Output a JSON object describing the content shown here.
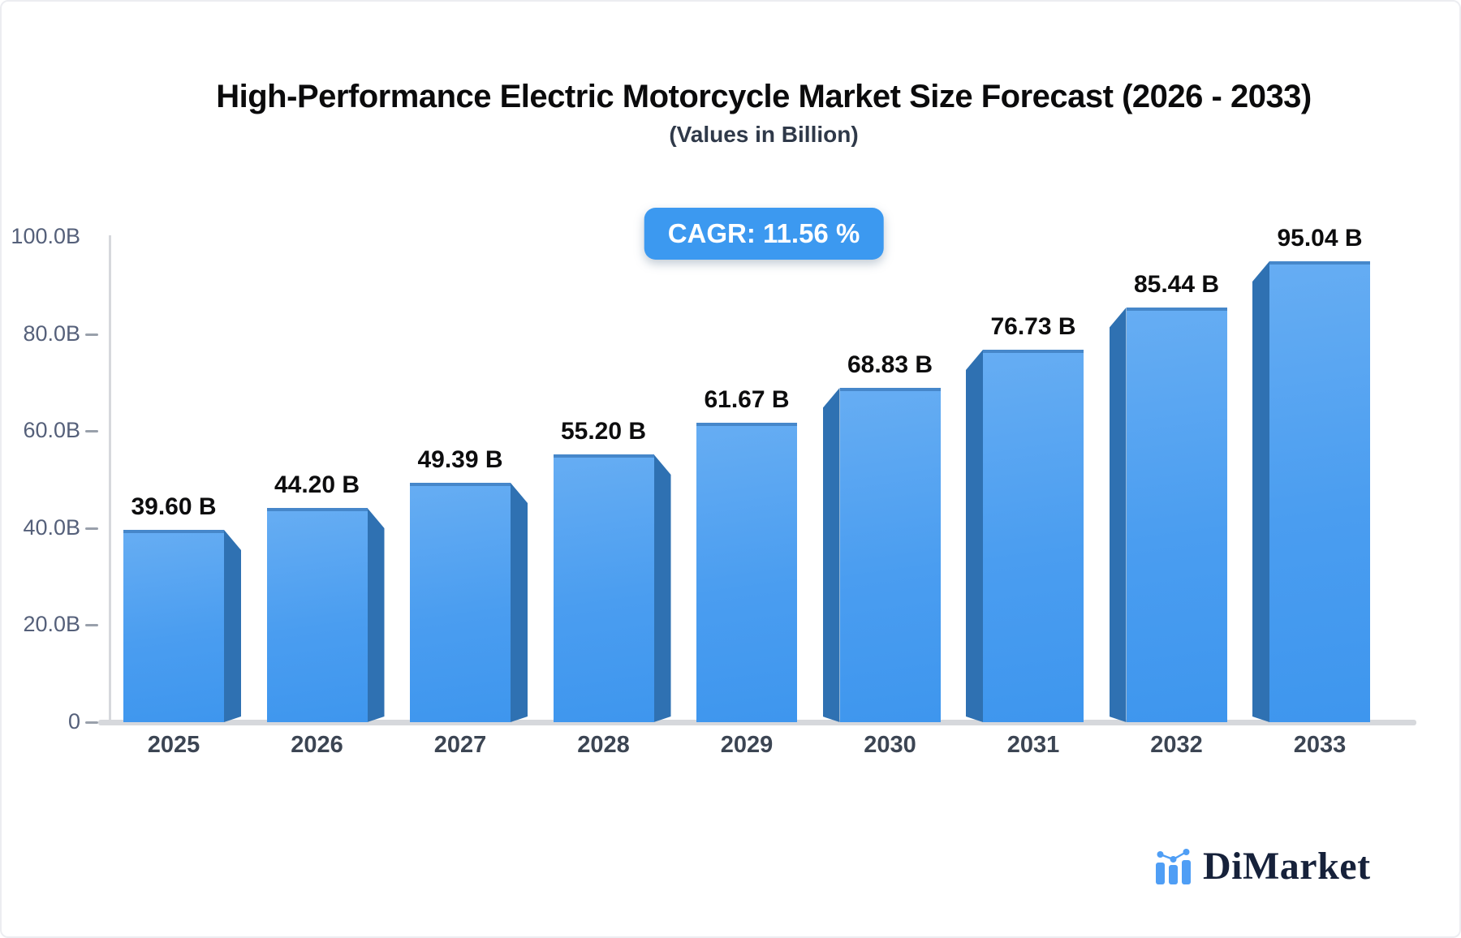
{
  "title": "High-Performance Electric Motorcycle Market Size Forecast (2026 - 2033)",
  "subtitle": "(Values in Billion)",
  "badge": {
    "label": "CAGR: 11.56 %"
  },
  "brand": {
    "name": "DiMarket",
    "icon": "bar-chart-logo-icon"
  },
  "colors": {
    "bar_face_top": "#66adf3",
    "bar_face_bottom": "#3e96ee",
    "bar_top_cap": "#4687ca",
    "bar_side": "#2f71b2",
    "badge_bg": "#3c99f0",
    "axis_line": "#d6d8dc",
    "tick_dash": "#99a0ab",
    "y_label_text": "#55607a",
    "x_label_text": "#3c4553",
    "value_label_text": "#0d0d0e",
    "logo_blue": "#4f9ef5",
    "logo_navy": "#16213a"
  },
  "chart_data": {
    "type": "bar",
    "title": "High-Performance Electric Motorcycle Market Size Forecast (2026 - 2033)",
    "subtitle": "(Values in Billion)",
    "categories": [
      "2025",
      "2026",
      "2027",
      "2028",
      "2029",
      "2030",
      "2031",
      "2032",
      "2033"
    ],
    "values": [
      39.6,
      44.2,
      49.39,
      55.2,
      61.67,
      68.83,
      76.73,
      85.44,
      95.04
    ],
    "value_labels": [
      "39.60 B",
      "44.20 B",
      "49.39 B",
      "55.20 B",
      "61.67 B",
      "68.83 B",
      "76.73 B",
      "85.44 B",
      "95.04 B"
    ],
    "annotation": "CAGR: 11.56 %",
    "xlabel": "",
    "ylabel": "",
    "ylim": [
      0,
      100
    ],
    "y_ticks": [
      {
        "value": 100,
        "label": "100.0B"
      },
      {
        "value": 80,
        "label": "80.0B"
      },
      {
        "value": 60,
        "label": "60.0B"
      },
      {
        "value": 40,
        "label": "40.0B"
      },
      {
        "value": 20,
        "label": "20.0B"
      },
      {
        "value": 0,
        "label": "0"
      }
    ],
    "grid": false,
    "legend": false,
    "bar_style": "3d-extruded-perspective"
  }
}
